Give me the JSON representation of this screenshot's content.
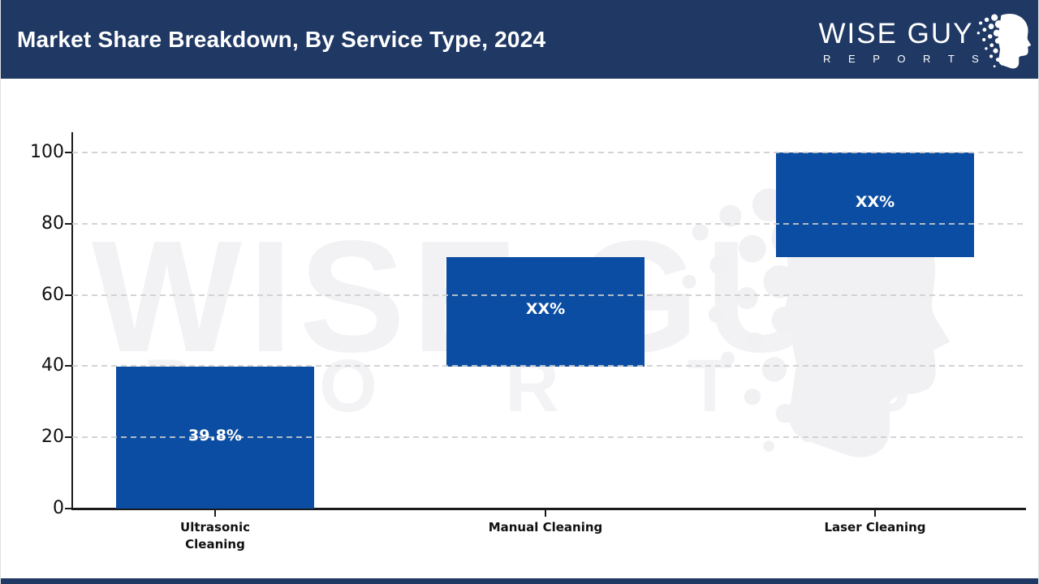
{
  "header": {
    "title": "Market Share Breakdown, By Service Type, 2024",
    "background_color": "#1f3864",
    "brand": {
      "line1": "WISE GUY",
      "line2": "R E P O R T S"
    }
  },
  "watermark": {
    "line1": "WISE GUY",
    "line2": "P O R T S"
  },
  "chart_data": {
    "type": "bar",
    "subtype": "waterfall-stacked-breakdown",
    "title": "Market Share Breakdown, By Service Type, 2024",
    "categories": [
      "Ultrasonic Cleaning",
      "Manual Cleaning",
      "Laser Cleaning"
    ],
    "bars": [
      {
        "category": "Ultrasonic Cleaning",
        "start": 0,
        "end": 39.8,
        "label": "39.8%"
      },
      {
        "category": "Manual Cleaning",
        "start": 39.8,
        "end": 70.7,
        "label": "XX%"
      },
      {
        "category": "Laser Cleaning",
        "start": 70.7,
        "end": 100,
        "label": "XX%"
      }
    ],
    "yticks": [
      0,
      20,
      40,
      60,
      80,
      100
    ],
    "ylim": [
      0,
      105
    ],
    "xlabel": "",
    "ylabel": "",
    "grid": "horizontal-dashed",
    "bar_color": "#0b4da2",
    "bar_label_color": "#ffffff",
    "axis_color": "#1a1a1a",
    "gridline_color": "#cdcdcd"
  }
}
